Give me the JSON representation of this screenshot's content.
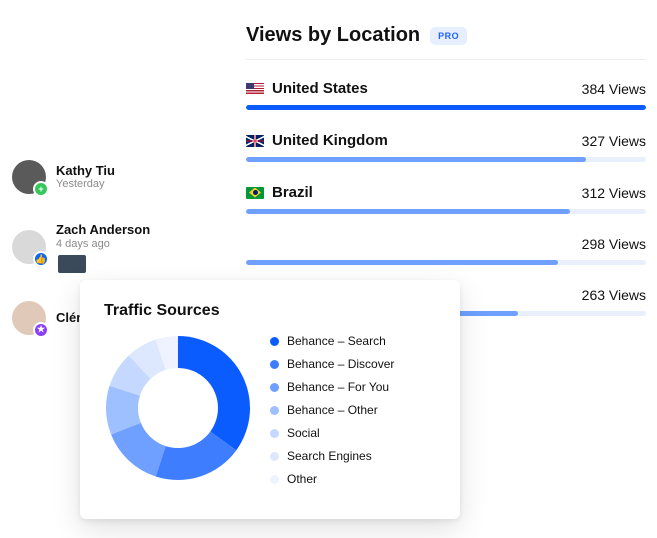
{
  "views_card": {
    "title": "Views by Location",
    "badge": "PRO",
    "badge_bg": "#e7efff",
    "badge_color": "#1f62ff",
    "max_views": 384,
    "bar_track_color": "#eaf0fb",
    "rows": [
      {
        "flag": "us",
        "name": "United States",
        "views": 384,
        "label": "384 Views",
        "bar_color": "#0b5cff",
        "pct": 100
      },
      {
        "flag": "uk",
        "name": "United Kingdom",
        "views": 327,
        "label": "327 Views",
        "bar_color": "#6fa0ff",
        "pct": 85
      },
      {
        "flag": "br",
        "name": "Brazil",
        "views": 312,
        "label": "312 Views",
        "bar_color": "#6fa0ff",
        "pct": 81
      },
      {
        "flag": "",
        "name": "",
        "views": 298,
        "label": "298 Views",
        "bar_color": "#6fa0ff",
        "pct": 78
      },
      {
        "flag": "",
        "name": "",
        "views": 263,
        "label": "263 Views",
        "bar_color": "#6fa0ff",
        "pct": 68
      }
    ]
  },
  "activity": {
    "rows": [
      {
        "name": "Kathy Tiu",
        "time": "Yesterday",
        "badge_color": "#34c759",
        "badge_glyph": "+",
        "avatar_color": "#5a5a5a",
        "thumb": false
      },
      {
        "name": "Zach Anderson",
        "time": "4 days ago",
        "badge_color": "#0a66ff",
        "badge_glyph": "👍",
        "avatar_color": "#d9d9d9",
        "thumb": true
      },
      {
        "name": "Clém",
        "time": "",
        "badge_color": "#8a3ffc",
        "badge_glyph": "★",
        "avatar_color": "#e0c9b8",
        "thumb": false
      }
    ]
  },
  "traffic": {
    "title": "Traffic Sources",
    "donut_size": 148,
    "hole_size": 80,
    "segments": [
      {
        "label": "Behance – Search",
        "color": "#0b5cff",
        "value": 35
      },
      {
        "label": "Behance – Discover",
        "color": "#3f7dff",
        "value": 20
      },
      {
        "label": "Behance – For You",
        "color": "#6fa0ff",
        "value": 14
      },
      {
        "label": "Behance – Other",
        "color": "#9fc0ff",
        "value": 11
      },
      {
        "label": "Social",
        "color": "#c5d8ff",
        "value": 8
      },
      {
        "label": "Search Engines",
        "color": "#dde8ff",
        "value": 7
      },
      {
        "label": "Other",
        "color": "#eef3ff",
        "value": 5
      }
    ]
  }
}
